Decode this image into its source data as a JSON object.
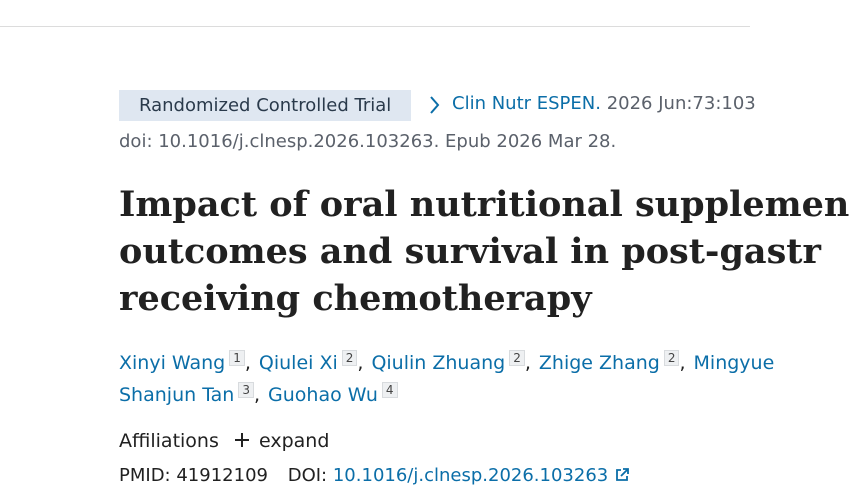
{
  "publication_type": "Randomized Controlled Trial",
  "journal": "Clin Nutr ESPEN.",
  "citation": "2026 Jun:73:103",
  "doi_line": "doi: 10.1016/j.clnesp.2026.103263. Epub 2026 Mar 28.",
  "title_lines": [
    "Impact of oral nutritional supplemen",
    "outcomes and survival in post-gastr",
    "receiving chemotherapy"
  ],
  "author_lines": [
    [
      {
        "name": "Xinyi Wang",
        "sup": "1"
      },
      {
        "name": "Qiulei Xi",
        "sup": "2"
      },
      {
        "name": "Qiulin Zhuang",
        "sup": "2"
      },
      {
        "name": "Zhige Zhang",
        "sup": "2"
      },
      {
        "name": "Mingyue"
      }
    ],
    [
      {
        "name": "Shanjun Tan",
        "sup": "3"
      },
      {
        "name": "Guohao Wu",
        "sup": "4"
      }
    ]
  ],
  "affiliations": {
    "label": "Affiliations",
    "toggle": "expand"
  },
  "identifiers": {
    "pmid_label": "PMID:",
    "pmid": "41912109",
    "doi_label": "DOI:",
    "doi": "10.1016/j.clnesp.2026.103263"
  }
}
